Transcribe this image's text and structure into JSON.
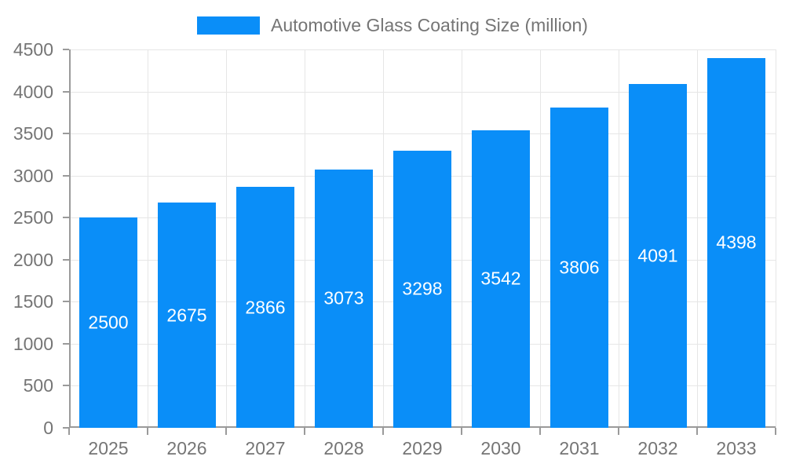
{
  "chart_data": {
    "type": "bar",
    "title": "Automotive Glass Coating Size (million)",
    "legend_position": "top",
    "categories": [
      "2025",
      "2026",
      "2027",
      "2028",
      "2029",
      "2030",
      "2031",
      "2032",
      "2033"
    ],
    "values": [
      2500,
      2675,
      2866,
      3073,
      3298,
      3542,
      3806,
      4091,
      4398
    ],
    "xlabel": "",
    "ylabel": "",
    "ylim": [
      0,
      4500
    ],
    "ytick_step": 500,
    "ytick_labels": [
      "0",
      "500",
      "1000",
      "1500",
      "2000",
      "2500",
      "3000",
      "3500",
      "4000",
      "4500"
    ],
    "grid": true,
    "value_labels_shown": true,
    "colors": {
      "bar": "#0a8ef8",
      "value_label": "#ffffff",
      "axis_text": "#757575",
      "legend_text": "#757575",
      "gridline": "#e6e6e6",
      "axis_line": "#9a9a9a",
      "background": "#ffffff"
    }
  }
}
